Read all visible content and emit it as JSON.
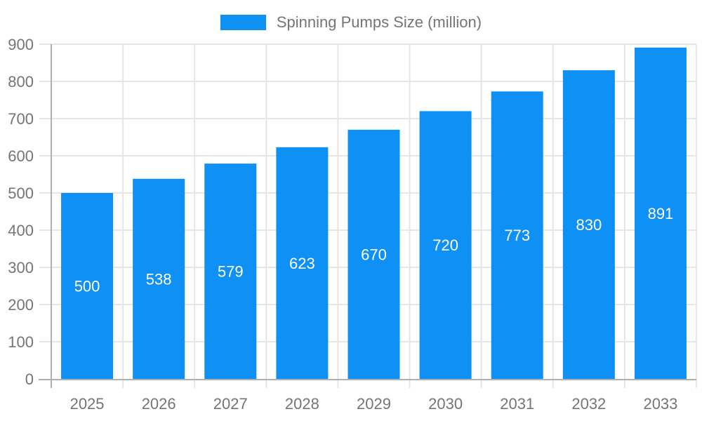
{
  "colors": {
    "bar": "#0e90f5",
    "grid": "#e6e6e6",
    "axis": "#b0b0b0",
    "axis_label": "#757575",
    "value_label": "#ffffff",
    "background": "#ffffff"
  },
  "chart_data": {
    "type": "bar",
    "title": "",
    "series_name": "Spinning Pumps Size (million)",
    "categories": [
      "2025",
      "2026",
      "2027",
      "2028",
      "2029",
      "2030",
      "2031",
      "2032",
      "2033"
    ],
    "values": [
      500,
      538,
      579,
      623,
      670,
      720,
      773,
      830,
      891
    ],
    "xlabel": "",
    "ylabel": "",
    "ylim": [
      0,
      900
    ],
    "ytick_step": 100,
    "grid": true,
    "value_labels": "inside-center",
    "legend_position": "top-center"
  }
}
